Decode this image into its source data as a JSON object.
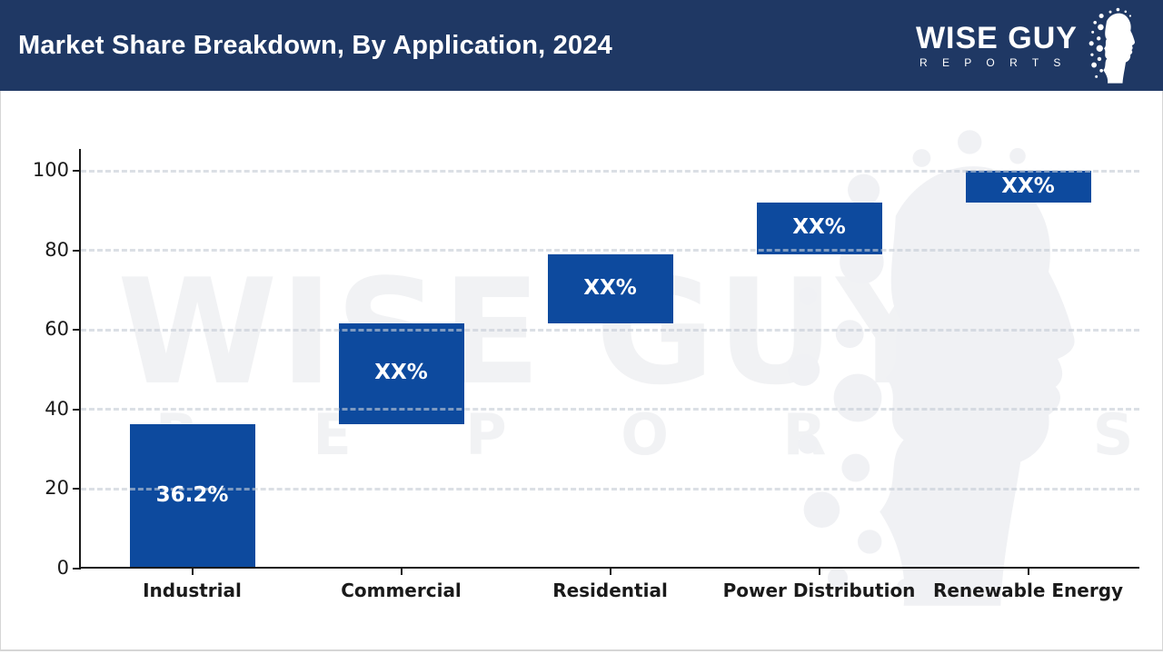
{
  "header": {
    "title": "Market Share Breakdown, By Application, 2024",
    "logo": {
      "name": "WISE GUY",
      "subtitle": "R E P O R T S"
    }
  },
  "watermark": {
    "name": "WISE GUY",
    "subtitle": "R E P O R T S"
  },
  "chart_data": {
    "type": "bar",
    "subtype": "floating-waterfall",
    "title": "Market Share Breakdown, By Application, 2024",
    "categories": [
      "Industrial",
      "Commercial",
      "Residential",
      "Power Distribution",
      "Renewable Energy"
    ],
    "bars": [
      {
        "category": "Industrial",
        "start": 0,
        "end": 36.2,
        "label": "36.2%"
      },
      {
        "category": "Commercial",
        "start": 36.2,
        "end": 61.7,
        "label": "XX%"
      },
      {
        "category": "Residential",
        "start": 61.7,
        "end": 79.0,
        "label": "XX%"
      },
      {
        "category": "Power Distribution",
        "start": 79.0,
        "end": 92.0,
        "label": "XX%"
      },
      {
        "category": "Renewable Energy",
        "start": 92.0,
        "end": 100.0,
        "label": "XX%"
      }
    ],
    "ylim": [
      0,
      100
    ],
    "yticks": [
      0,
      20,
      40,
      60,
      80,
      100
    ],
    "xlabel": "",
    "ylabel": "",
    "grid": {
      "horizontal": true,
      "style": "dashed"
    },
    "legend": "none",
    "colors": {
      "bar": "#0d4a9e",
      "bar_label": "#ffffff",
      "axis": "#1a1a1a",
      "gridline": "#c5cbd5",
      "header_bg": "#1f3864",
      "watermark": "#f1f2f4"
    }
  }
}
